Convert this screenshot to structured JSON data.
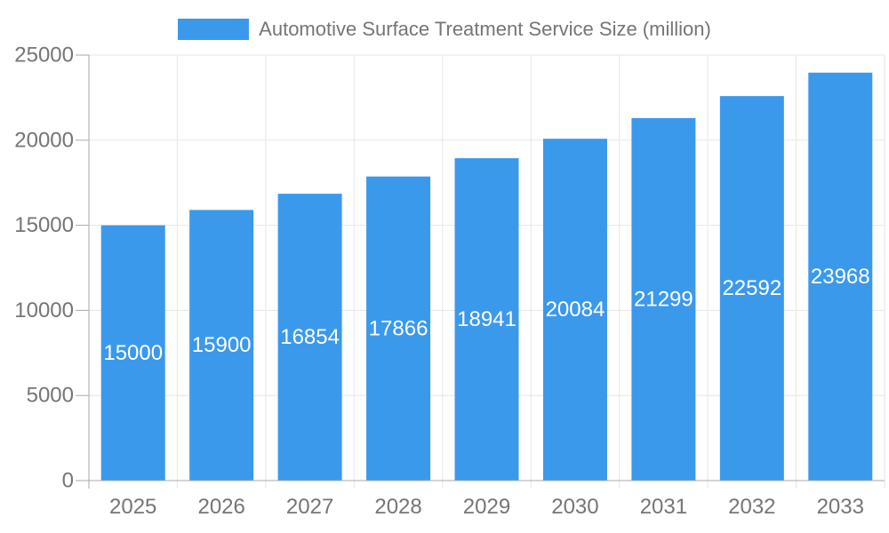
{
  "chart_data": {
    "type": "bar",
    "title": "",
    "series_name": "Automotive Surface Treatment Service Size (million)",
    "categories": [
      "2025",
      "2026",
      "2027",
      "2028",
      "2029",
      "2030",
      "2031",
      "2032",
      "2033"
    ],
    "values": [
      15000,
      15900,
      16854,
      17866,
      18941,
      20084,
      21299,
      22592,
      23968
    ],
    "xlabel": "",
    "ylabel": "",
    "ylim": [
      0,
      25000
    ],
    "y_ticks": [
      0,
      5000,
      10000,
      15000,
      20000,
      25000
    ],
    "legend_position": "top-center",
    "grid": true,
    "show_value_labels": true,
    "value_label_position": "inside-center",
    "colors": {
      "bar": "#3b99ec",
      "grid": "#e6e6e6",
      "axis": "#aaaaaa",
      "tick_text": "#757575",
      "value_label": "#ffffff",
      "background": "#ffffff"
    }
  }
}
